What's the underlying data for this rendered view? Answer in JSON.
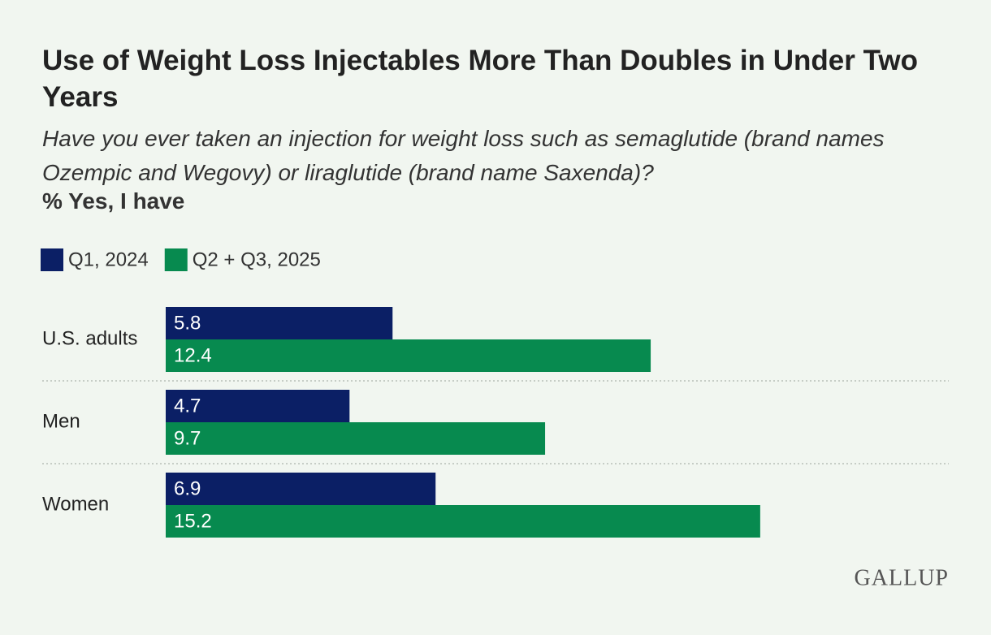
{
  "chart_data": {
    "type": "bar",
    "orientation": "horizontal",
    "title": "Use of Weight Loss Injectables More Than Doubles in Under Two Years",
    "subtitle": "Have you ever taken an injection for weight loss such as semaglutide (brand names Ozempic and Wegovy) or liraglutide (brand name Saxenda)?",
    "measure": "% Yes, I have",
    "categories": [
      "U.S. adults",
      "Men",
      "Women"
    ],
    "series": [
      {
        "name": "Q1, 2024",
        "color": "#0b1f65",
        "values": [
          5.8,
          4.7,
          6.9
        ]
      },
      {
        "name": "Q2 + Q3, 2025",
        "color": "#078a4f",
        "values": [
          12.4,
          9.7,
          15.2
        ]
      }
    ],
    "data_labels": true,
    "brand": "GALLUP"
  }
}
